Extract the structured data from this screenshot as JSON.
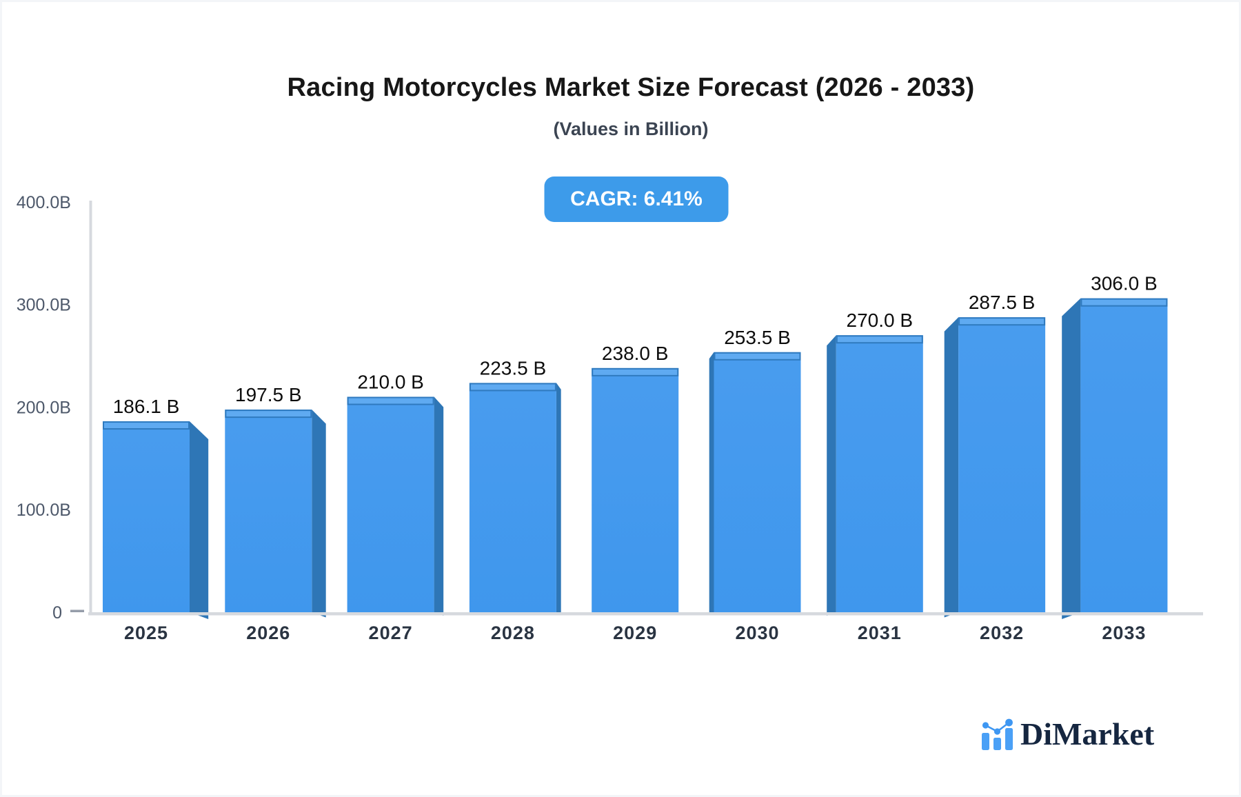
{
  "header": {
    "title": "Racing Motorcycles Market Size Forecast (2026 - 2033)",
    "subtitle": "(Values in Billion)",
    "cagr_badge": "CAGR: 6.41%"
  },
  "branding": {
    "logo_text": "DiMarket",
    "logo_icon": "bar-line-chart-icon"
  },
  "colors": {
    "bar_front_top": "#499cee",
    "bar_front_bottom": "#3f97ed",
    "bar_top_strip": "#5faaf1",
    "bar_top_stroke": "#2f7abf",
    "bar_side": "#2e76b6",
    "badge_blue": "#3d9bea",
    "axis_gray": "#d6d9de",
    "tick_dash": "#959da9",
    "ytick_text": "#4d586a",
    "xtick_text": "#2a3442",
    "value_text": "#0d0d0d",
    "logo_navy": "#152640",
    "logo_blue": "#4aa0f6"
  },
  "chart_data": {
    "type": "bar",
    "title": "Racing Motorcycles Market Size Forecast (2026 - 2033)",
    "subtitle": "(Values in Billion)",
    "annotation": "CAGR: 6.41%",
    "categories": [
      "2025",
      "2026",
      "2027",
      "2028",
      "2029",
      "2030",
      "2031",
      "2032",
      "2033"
    ],
    "values": [
      186.1,
      197.5,
      210.0,
      223.5,
      238.0,
      253.5,
      270.0,
      287.5,
      306.0
    ],
    "bar_labels": [
      "186.1 B",
      "197.5 B",
      "210.0 B",
      "223.5 B",
      "238.0 B",
      "253.5 B",
      "270.0 B",
      "287.5 B",
      "306.0 B"
    ],
    "unit": "Billion",
    "xlabel": "",
    "ylabel": "",
    "ylim": [
      0,
      400
    ],
    "grid": false,
    "legend": "none",
    "yticks": [
      {
        "value": 400,
        "label": "400.0B"
      },
      {
        "value": 300,
        "label": "300.0B"
      },
      {
        "value": 200,
        "label": "200.0B"
      },
      {
        "value": 100,
        "label": "100.0B"
      },
      {
        "value": 0,
        "label": "0"
      }
    ]
  }
}
